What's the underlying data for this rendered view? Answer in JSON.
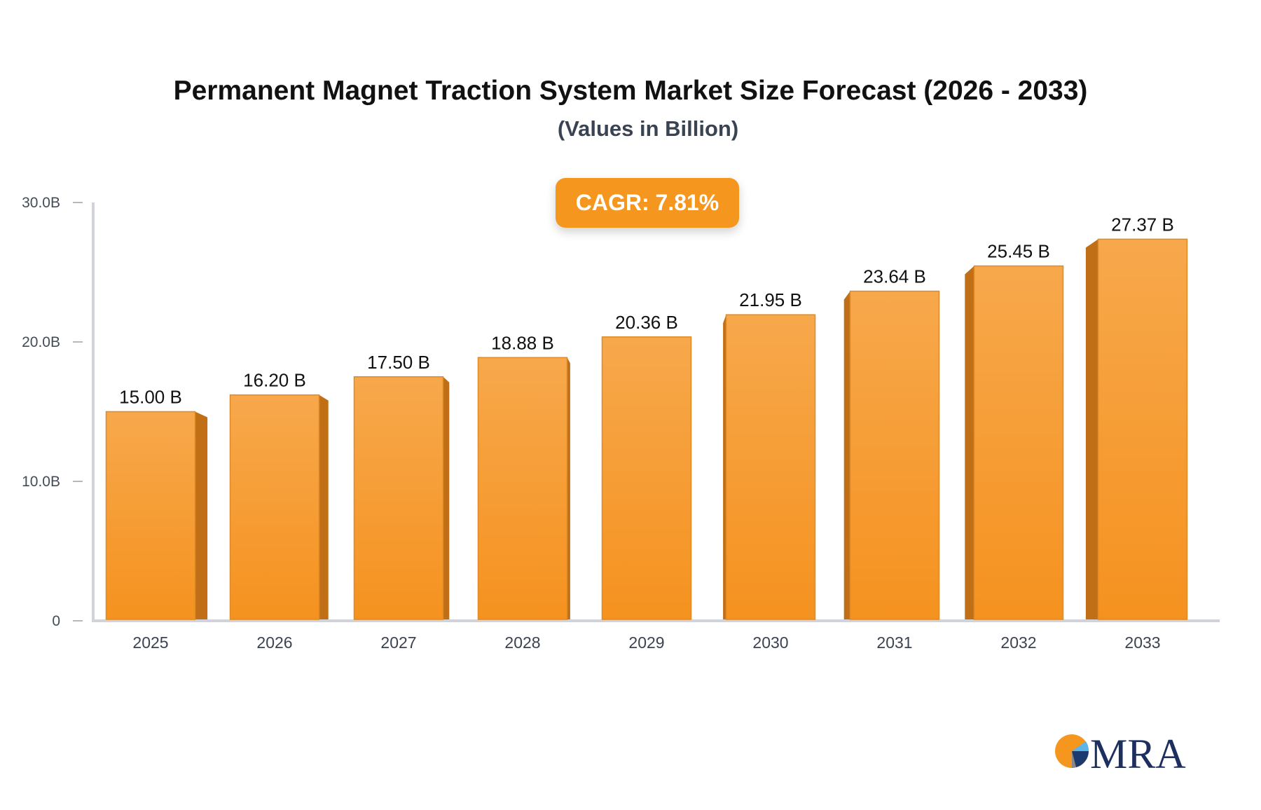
{
  "title": "Permanent Magnet Traction System Market Size Forecast (2026 - 2033)",
  "subtitle": "(Values in Billion)",
  "cagr_label": "CAGR: 7.81%",
  "logo_text": "MRA",
  "colors": {
    "bar_front": "#f7a548",
    "bar_bottom": "#f5911e",
    "bar_side": "#c06f17",
    "badge": "#f5961f",
    "axis": "#d0d3da"
  },
  "chart_data": {
    "type": "bar",
    "categories": [
      "2025",
      "2026",
      "2027",
      "2028",
      "2029",
      "2030",
      "2031",
      "2032",
      "2033"
    ],
    "values": [
      15.0,
      16.2,
      17.5,
      18.88,
      20.36,
      21.95,
      23.64,
      25.45,
      27.37
    ],
    "data_labels": [
      "15.00 B",
      "16.20 B",
      "17.50 B",
      "18.88 B",
      "20.36 B",
      "21.95 B",
      "23.64 B",
      "25.45 B",
      "27.37 B"
    ],
    "yticks": [
      0,
      10,
      20,
      30
    ],
    "ytick_labels": [
      "0",
      "10.0B",
      "20.0B",
      "30.0B"
    ],
    "ylim": [
      0,
      30
    ],
    "xlabel": "",
    "ylabel": "",
    "grid": false,
    "legend": "none"
  }
}
